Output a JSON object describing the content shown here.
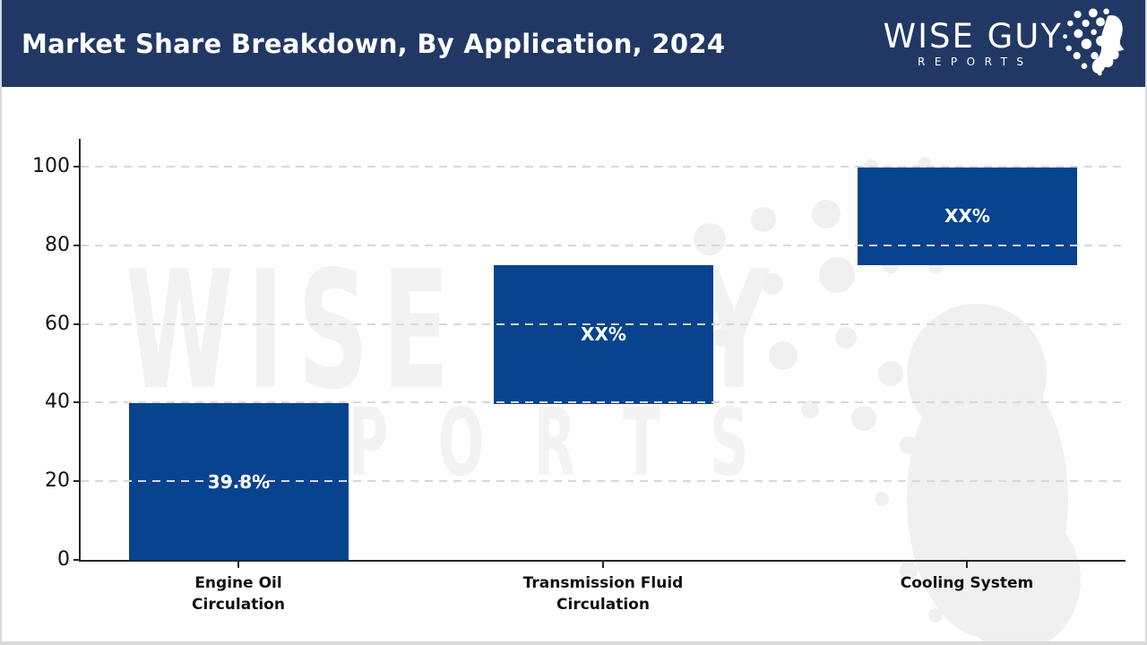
{
  "header": {
    "title": "Market Share Breakdown, By Application, 2024",
    "logo": {
      "brand_line1": "WISE GUY",
      "brand_line2": "REPORTS"
    }
  },
  "watermark": {
    "line1": "WISE GUY",
    "line2": "REPORTS"
  },
  "chart_data": {
    "type": "bar",
    "subtype": "waterfall",
    "title": "Market Share Breakdown, By Application, 2024",
    "categories": [
      [
        "Engine Oil",
        "Circulation"
      ],
      [
        "Transmission Fluid",
        "Circulation"
      ],
      [
        "Cooling System"
      ]
    ],
    "bars": [
      {
        "category": "Engine Oil Circulation",
        "start": 0,
        "end": 39.8,
        "label": "39.8%"
      },
      {
        "category": "Transmission Fluid Circulation",
        "start": 39.8,
        "end": 75.0,
        "label": "XX%"
      },
      {
        "category": "Cooling System",
        "start": 75.0,
        "end": 99.8,
        "label": "XX%"
      }
    ],
    "xlabel": "",
    "ylabel": "",
    "yticks": [
      0,
      20,
      40,
      60,
      80,
      100
    ],
    "ylim": [
      0,
      105
    ],
    "grid": {
      "horizontal": true,
      "style": "dashed",
      "color": "#d8d8d8"
    },
    "legend": "none",
    "bar_color": "#07438f",
    "bar_label_color": "#ffffff"
  },
  "colors": {
    "header_bg": "#213864",
    "header_text": "#ffffff",
    "bar": "#07438f",
    "watermark_text": "#f2f2f2",
    "watermark_face": "#f0f0f0",
    "axis": "#262626",
    "tick_text": "#111111",
    "page_border": "#d9d9d9"
  }
}
